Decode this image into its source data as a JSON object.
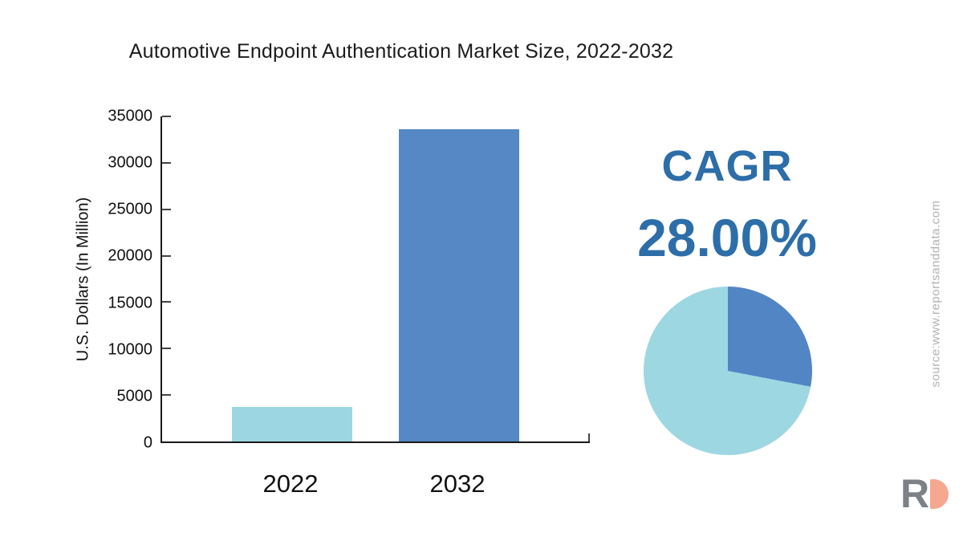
{
  "title": "Automotive Endpoint Authentication Market Size, 2022-2032",
  "chart_data": {
    "type": "bar",
    "title": "Automotive Endpoint Authentication Market Size, 2022-2032",
    "categories": [
      "2022",
      "2032"
    ],
    "values": [
      3700,
      33600
    ],
    "xlabel": "",
    "ylabel": "U.S. Dollars (In Million)",
    "ylim": [
      0,
      35000
    ],
    "ytick_step": 5000,
    "ytick_labels_top_to_bottom": [
      "35000",
      "30000",
      "25000",
      "20000",
      "15000",
      "10000",
      "5000",
      "0"
    ],
    "bar_colors": [
      "#9bd6e2",
      "#5588c4"
    ],
    "grid": false,
    "legend": "none"
  },
  "cagr": {
    "label": "CAGR",
    "value": "28.00%",
    "percent": 28,
    "text_color": "#2d6ea9"
  },
  "pie": {
    "slice_percent": 28,
    "slice_color": "#5285c4",
    "remainder_color": "#9dd7e2",
    "start_angle_deg": 0
  },
  "source": {
    "text": "source:www.reportsanddata.com"
  },
  "logo": {
    "letter": "R",
    "d_color": "#f5a88f",
    "r_color": "#7b8187"
  },
  "colors": {
    "background": "#ffffff",
    "axis": "#1a1a1a",
    "bar_2022": "#9bd6e2",
    "bar_2032": "#5588c4",
    "cagr_blue": "#2d6ea9",
    "source_gray": "#b2b2b2"
  }
}
